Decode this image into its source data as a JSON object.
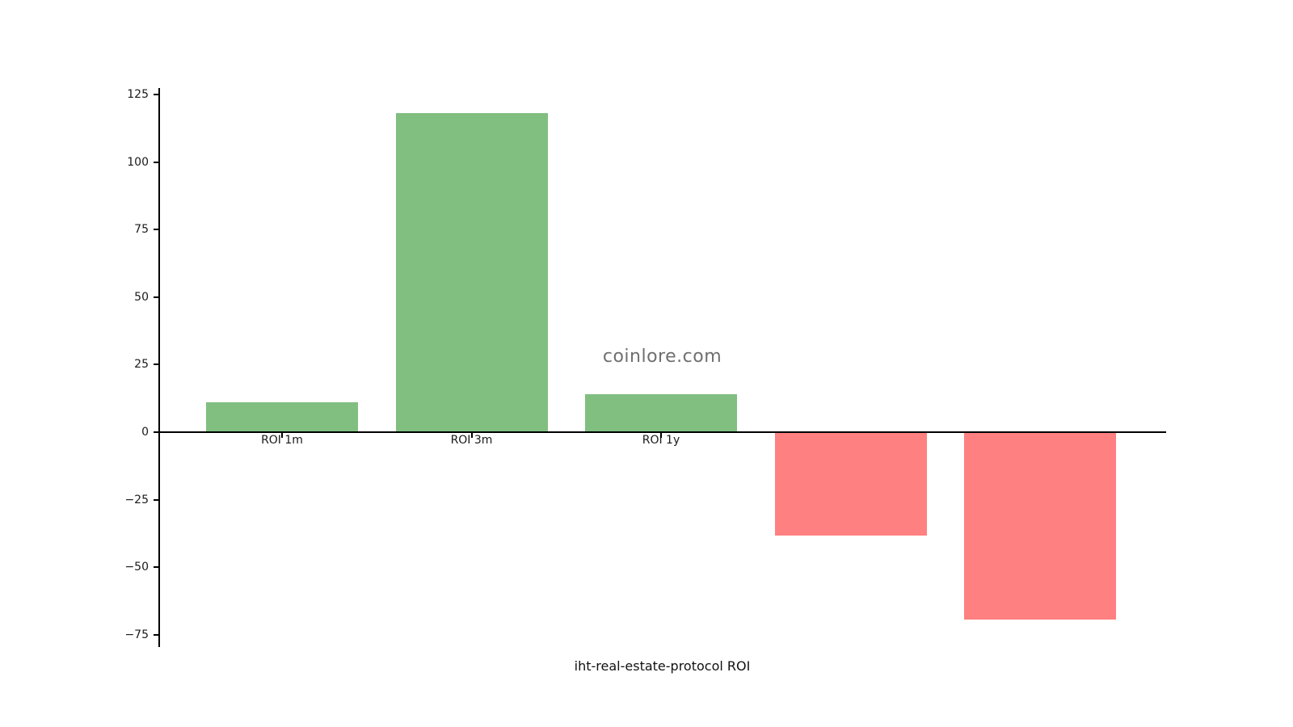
{
  "watermark": "coinlore.com",
  "title": "iht-real-estate-protocol ROI",
  "chart_data": {
    "type": "bar",
    "title": "iht-real-estate-protocol ROI",
    "watermark": "coinlore.com",
    "categories": [
      "ROI 1m",
      "ROI 3m",
      "ROI 1y",
      "",
      ""
    ],
    "values": [
      11,
      118,
      14,
      -38,
      -69
    ],
    "xlabel": "",
    "ylabel": "",
    "yticks": [
      125,
      100,
      75,
      50,
      25,
      0,
      -25,
      -50,
      -75
    ],
    "ylim": [
      -79.4,
      127.4
    ],
    "grid": false,
    "legend": null,
    "positive_color": "#80bf80",
    "negative_color": "#ff8080",
    "axis_color": "#000000"
  }
}
